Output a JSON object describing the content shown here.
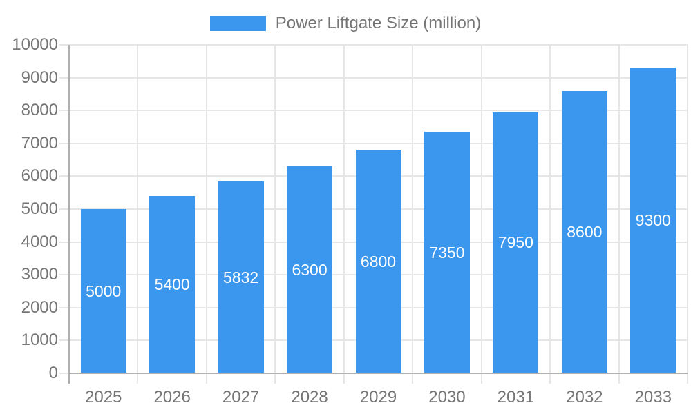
{
  "legend": {
    "label": "Power Liftgate Size (million)"
  },
  "chart_data": {
    "type": "bar",
    "title": "Power Liftgate Size (million)",
    "series_name": "Power Liftgate Size (million)",
    "categories": [
      "2025",
      "2026",
      "2027",
      "2028",
      "2029",
      "2030",
      "2031",
      "2032",
      "2033"
    ],
    "values": [
      5000,
      5400,
      5832,
      6300,
      6800,
      7350,
      7950,
      8600,
      9300
    ],
    "bar_value_labels": [
      "5000",
      "5400",
      "5832",
      "6300",
      "6800",
      "7350",
      "7950",
      "8600",
      "9300"
    ],
    "xlabel": "",
    "ylabel": "",
    "ylim": [
      0,
      10000
    ],
    "y_tick_step": 1000,
    "y_tick_labels": [
      "0",
      "1000",
      "2000",
      "3000",
      "4000",
      "5000",
      "6000",
      "7000",
      "8000",
      "9000",
      "10000"
    ],
    "grid": true,
    "legend_position": "top",
    "colors": {
      "bar": "#3B97ED",
      "bar_label_text": "#FFFFFF",
      "axis_line": "#B0B0B0",
      "gridline": "#E6E6E6",
      "tick_text": "#757575",
      "background": "#FFFFFF"
    }
  }
}
